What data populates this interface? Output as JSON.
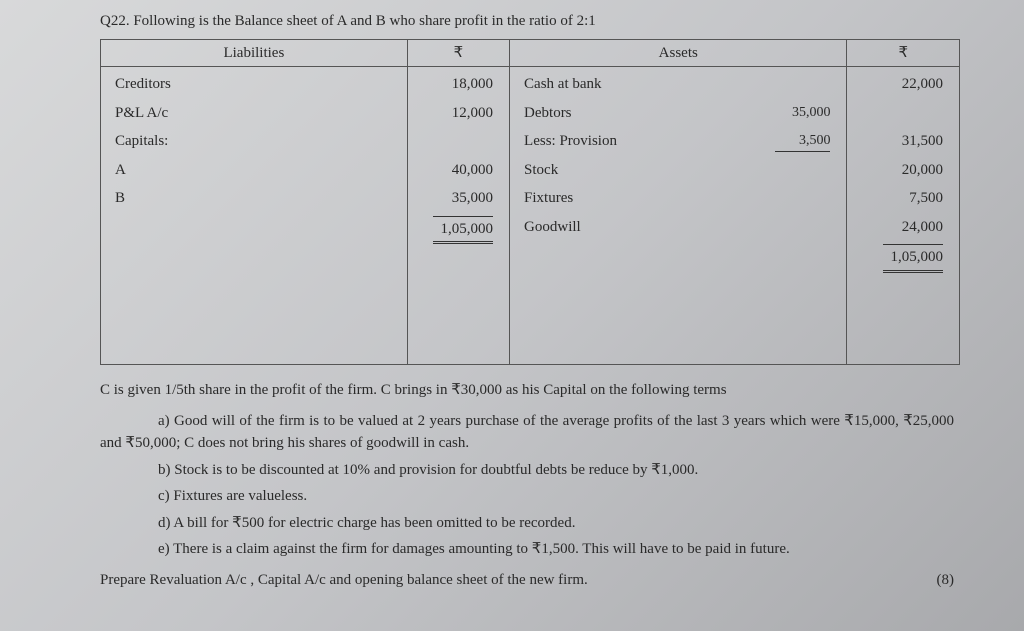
{
  "question_number": "Q22.",
  "question_title": "Following is the Balance sheet of A and B who share profit in the ratio of 2:1",
  "headers": {
    "liabilities": "Liabilities",
    "rupee1": "₹",
    "assets": "Assets",
    "rupee2": "₹"
  },
  "liabilities": {
    "creditors": "Creditors",
    "creditors_amt": "18,000",
    "pl": "P&L A/c",
    "pl_amt": "12,000",
    "capitals": "Capitals:",
    "a": "A",
    "a_amt": "40,000",
    "b": "B",
    "b_amt": "35,000",
    "total": "1,05,000"
  },
  "assets": {
    "cash": "Cash at bank",
    "cash_amt": "22,000",
    "debtors": "Debtors",
    "debtors_amt": "35,000",
    "provision": "Less: Provision",
    "provision_amt": "3,500",
    "debtors_net": "31,500",
    "stock": "Stock",
    "stock_amt": "20,000",
    "fixtures": "Fixtures",
    "fixtures_amt": "7,500",
    "goodwill": "Goodwill",
    "goodwill_amt": "24,000",
    "total": "1,05,000"
  },
  "c_intro": "C is given 1/5th share in the profit of the firm. C brings in ₹30,000 as his Capital on the following terms",
  "a_clause": "a) Good will of the firm is to be valued at 2 years purchase of the average profits of the last 3 years which were ₹15,000, ₹25,000 and ₹50,000; C does not bring his shares of goodwill in cash.",
  "b_clause": "b) Stock is to be discounted at 10% and provision for doubtful debts be reduce by ₹1,000.",
  "c_clause": "c) Fixtures are valueless.",
  "d_clause": "d) A bill for ₹500 for electric charge has been omitted to be recorded.",
  "e_clause": "e) There is a claim against the firm for damages amounting to ₹1,500. This will have to be paid in future.",
  "prepare": "Prepare Revaluation A/c , Capital A/c and opening balance sheet of the new firm.",
  "marks": "(8)"
}
